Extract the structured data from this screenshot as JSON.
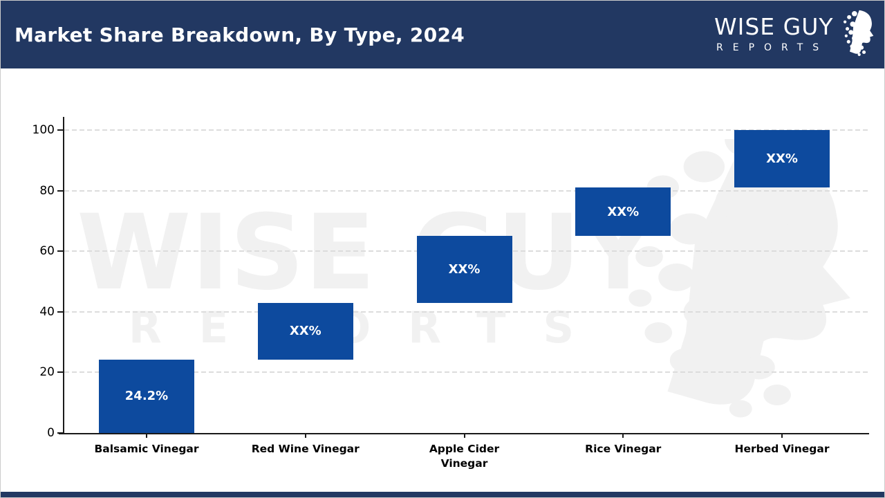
{
  "header": {
    "title": "Market Share Breakdown, By Type, 2024",
    "logo": {
      "line1": "WISE GUY",
      "line2": "REPORTS"
    }
  },
  "watermark": {
    "line1": "WISE GUY",
    "line2": "REPORTS"
  },
  "chart_data": {
    "type": "bar",
    "subtype": "floating-waterfall",
    "title": "Market Share Breakdown, By Type, 2024",
    "xlabel": "",
    "ylabel": "",
    "ylim": [
      0,
      100
    ],
    "yticks": [
      0,
      20,
      40,
      60,
      80,
      100
    ],
    "grid": "horizontal-dashed",
    "legend": "none",
    "bar_color": "#0d4a9e",
    "label_color": "#ffffff",
    "categories": [
      "Balsamic Vinegar",
      "Red Wine Vinegar",
      "Apple Cider\nVinegar",
      "Rice Vinegar",
      "Herbed Vinegar"
    ],
    "bars": [
      {
        "category": "Balsamic Vinegar",
        "start": 0,
        "end": 24.2,
        "label": "24.2%"
      },
      {
        "category": "Red Wine Vinegar",
        "start": 24.2,
        "end": 43,
        "label": "XX%"
      },
      {
        "category": "Apple Cider\nVinegar",
        "start": 43,
        "end": 65,
        "label": "XX%"
      },
      {
        "category": "Rice Vinegar",
        "start": 65,
        "end": 81,
        "label": "XX%"
      },
      {
        "category": "Herbed Vinegar",
        "start": 81,
        "end": 100,
        "label": "XX%"
      }
    ]
  }
}
